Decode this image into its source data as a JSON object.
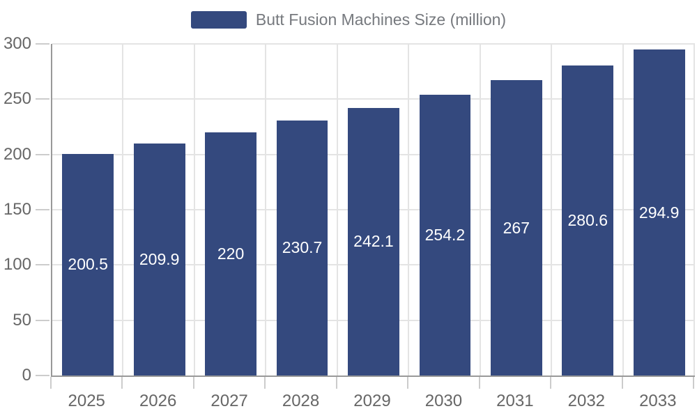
{
  "legend": {
    "label": "Butt Fusion Machines Size (million)"
  },
  "chart_data": {
    "type": "bar",
    "title": "Butt Fusion Machines Size (million)",
    "categories": [
      "2025",
      "2026",
      "2027",
      "2028",
      "2029",
      "2030",
      "2031",
      "2032",
      "2033"
    ],
    "values": [
      200.5,
      209.9,
      220,
      230.7,
      242.1,
      254.2,
      267,
      280.6,
      294.9
    ],
    "series": [
      {
        "name": "Butt Fusion Machines Size (million)",
        "values": [
          200.5,
          209.9,
          220,
          230.7,
          242.1,
          254.2,
          267,
          280.6,
          294.9
        ]
      }
    ],
    "xlabel": "",
    "ylabel": "",
    "ylim": [
      0,
      300
    ],
    "yticks": [
      0,
      50,
      100,
      150,
      200,
      250,
      300
    ],
    "grid": true,
    "legend_position": "top-center",
    "value_labels": "inside-center"
  },
  "colors": {
    "bar": "#34497e",
    "axis_line": "#999999",
    "gridline": "#e4e4e4",
    "tick": "#cccccc",
    "axis_text": "#666666",
    "legend_text": "#76797e",
    "value_label_text": "#ffffff",
    "background": "#ffffff"
  }
}
